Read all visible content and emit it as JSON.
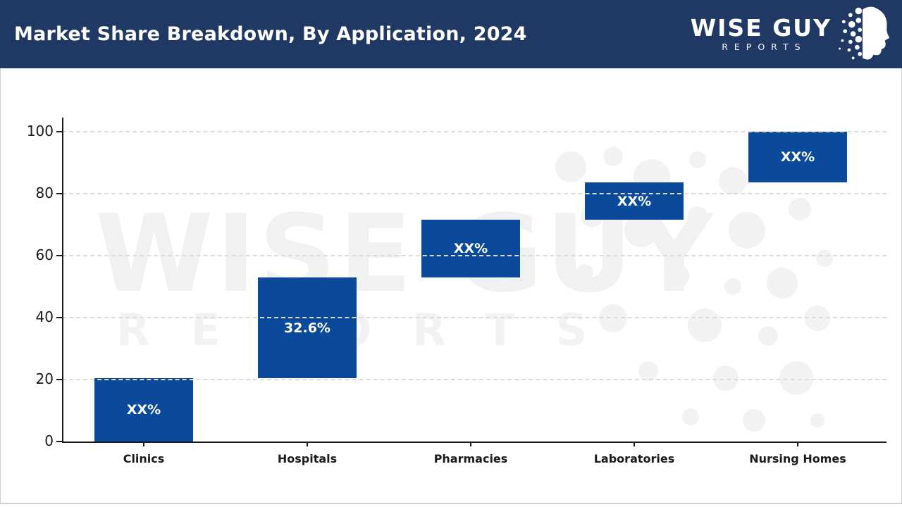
{
  "header": {
    "title": "Market Share Breakdown, By Application, 2024",
    "bg_color": "#1f3864",
    "brand": {
      "line1": "WISE GUY",
      "line2": "REPORTS"
    }
  },
  "watermark": {
    "line1": "WISE GUY",
    "line2": "REPORTS"
  },
  "chart_data": {
    "type": "bar",
    "subtype": "waterfall-floating-bars",
    "title": "Market Share Breakdown, By Application, 2024",
    "xlabel": "",
    "ylabel": "",
    "categories": [
      "Clinics",
      "Hospitals",
      "Pharmacies",
      "Laboratories",
      "Nursing Homes"
    ],
    "segments": [
      {
        "category": "Clinics",
        "start": 0,
        "end": 20.4,
        "value": 20.4,
        "label": "XX%"
      },
      {
        "category": "Hospitals",
        "start": 20.4,
        "end": 53.0,
        "value": 32.6,
        "label": "32.6%"
      },
      {
        "category": "Pharmacies",
        "start": 53.0,
        "end": 71.6,
        "value": 18.6,
        "label": "XX%"
      },
      {
        "category": "Laboratories",
        "start": 71.6,
        "end": 83.6,
        "value": 12.0,
        "label": "XX%"
      },
      {
        "category": "Nursing Homes",
        "start": 83.6,
        "end": 100.0,
        "value": 16.4,
        "label": "XX%"
      }
    ],
    "y_ticks": [
      0,
      20,
      40,
      60,
      80,
      100
    ],
    "ylim": [
      0,
      100
    ],
    "grid": "horizontal-dashed-over-bars",
    "legend": "none",
    "bar_color": "#0b4a9b",
    "bar_label_color": "#ffffff",
    "axis_color": "#1a1a1a",
    "grid_color": "#dcdcdc"
  }
}
